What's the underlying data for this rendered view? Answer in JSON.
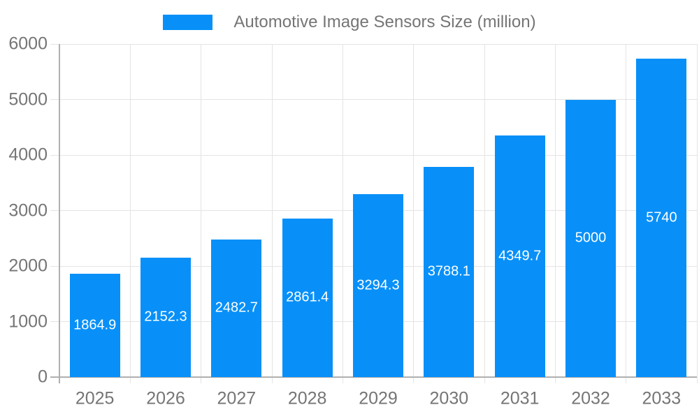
{
  "legend": {
    "label": "Automotive Image Sensors Size (million)"
  },
  "colors": {
    "bar": "#0890f8",
    "grid": "#e4e4e4",
    "axis": "#b0b0b0",
    "text": "#757575",
    "value_label": "#ffffff",
    "background": "#ffffff"
  },
  "chart_data": {
    "type": "bar",
    "title": "Automotive Image Sensors Size (million)",
    "categories": [
      "2025",
      "2026",
      "2027",
      "2028",
      "2029",
      "2030",
      "2031",
      "2032",
      "2033"
    ],
    "values": [
      1864.9,
      2152.3,
      2482.7,
      2861.4,
      3294.3,
      3788.1,
      4349.7,
      5000,
      5740
    ],
    "value_labels": [
      "1864.9",
      "2152.3",
      "2482.7",
      "2861.4",
      "3294.3",
      "3788.1",
      "4349.7",
      "5000",
      "5740"
    ],
    "xlabel": "",
    "ylabel": "",
    "ylim": [
      0,
      6000
    ],
    "yticks": [
      0,
      1000,
      2000,
      3000,
      4000,
      5000,
      6000
    ],
    "grid": true,
    "legend_position": "top",
    "value_label_position": "center-of-bar"
  }
}
